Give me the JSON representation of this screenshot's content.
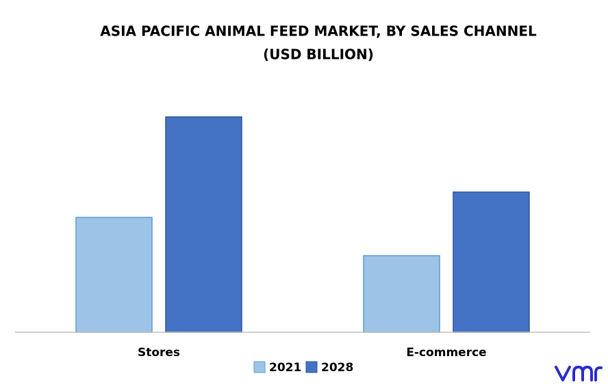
{
  "chart_data": {
    "type": "bar",
    "title": [
      "ASIA PACIFIC ANIMAL FEED MARKET, BY SALES CHANNEL",
      "(USD BILLION)"
    ],
    "categories": [
      "Stores",
      "E-commerce"
    ],
    "series": [
      {
        "name": "2021",
        "color": "#9dc3e6",
        "values": [
          168,
          112
        ]
      },
      {
        "name": "2028",
        "color": "#4472c4",
        "values": [
          315,
          205
        ]
      }
    ],
    "ylim": [
      0,
      350
    ],
    "legend": "bottom"
  }
}
